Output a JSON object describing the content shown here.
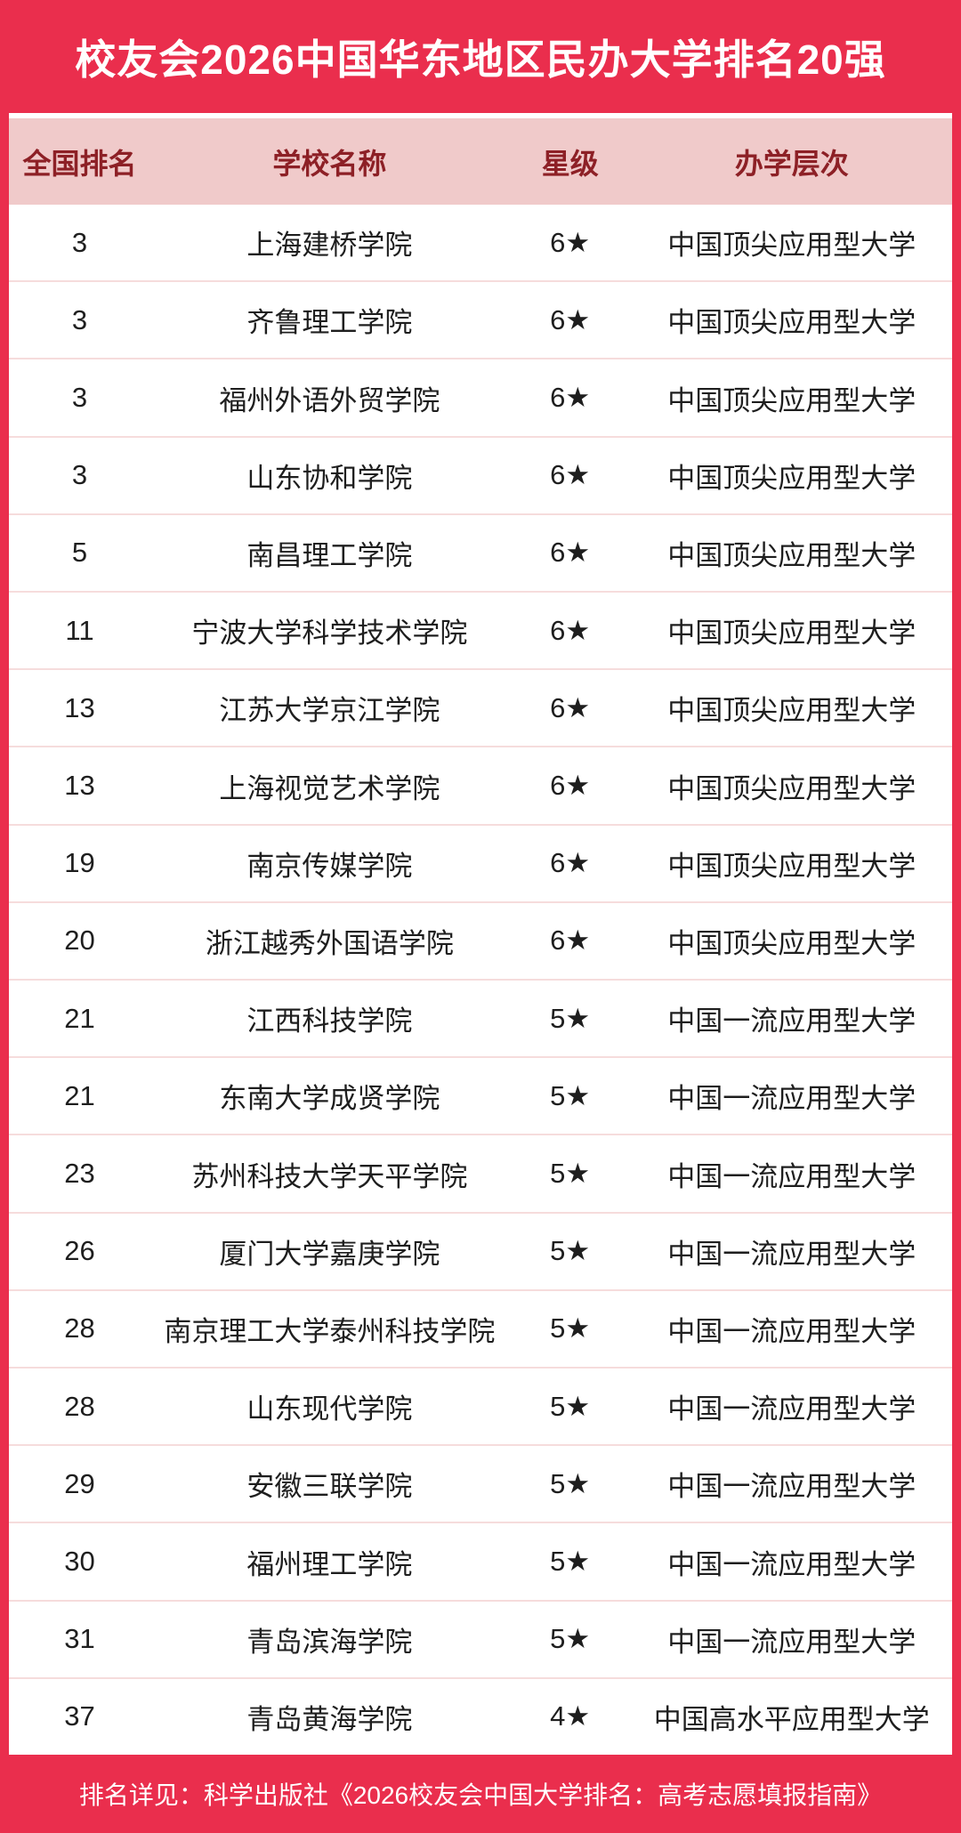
{
  "title": "校友会2026中国华东地区民办大学排名20强",
  "table": {
    "columns": [
      "全国排名",
      "学校名称",
      "星级",
      "办学层次"
    ],
    "rows": [
      {
        "rank": "3",
        "name": "上海建桥学院",
        "star": "6★",
        "level": "中国顶尖应用型大学"
      },
      {
        "rank": "3",
        "name": "齐鲁理工学院",
        "star": "6★",
        "level": "中国顶尖应用型大学"
      },
      {
        "rank": "3",
        "name": "福州外语外贸学院",
        "star": "6★",
        "level": "中国顶尖应用型大学"
      },
      {
        "rank": "3",
        "name": "山东协和学院",
        "star": "6★",
        "level": "中国顶尖应用型大学"
      },
      {
        "rank": "5",
        "name": "南昌理工学院",
        "star": "6★",
        "level": "中国顶尖应用型大学"
      },
      {
        "rank": "11",
        "name": "宁波大学科学技术学院",
        "star": "6★",
        "level": "中国顶尖应用型大学"
      },
      {
        "rank": "13",
        "name": "江苏大学京江学院",
        "star": "6★",
        "level": "中国顶尖应用型大学"
      },
      {
        "rank": "13",
        "name": "上海视觉艺术学院",
        "star": "6★",
        "level": "中国顶尖应用型大学"
      },
      {
        "rank": "19",
        "name": "南京传媒学院",
        "star": "6★",
        "level": "中国顶尖应用型大学"
      },
      {
        "rank": "20",
        "name": "浙江越秀外国语学院",
        "star": "6★",
        "level": "中国顶尖应用型大学"
      },
      {
        "rank": "21",
        "name": "江西科技学院",
        "star": "5★",
        "level": "中国一流应用型大学"
      },
      {
        "rank": "21",
        "name": "东南大学成贤学院",
        "star": "5★",
        "level": "中国一流应用型大学"
      },
      {
        "rank": "23",
        "name": "苏州科技大学天平学院",
        "star": "5★",
        "level": "中国一流应用型大学"
      },
      {
        "rank": "26",
        "name": "厦门大学嘉庚学院",
        "star": "5★",
        "level": "中国一流应用型大学"
      },
      {
        "rank": "28",
        "name": "南京理工大学泰州科技学院",
        "star": "5★",
        "level": "中国一流应用型大学"
      },
      {
        "rank": "28",
        "name": "山东现代学院",
        "star": "5★",
        "level": "中国一流应用型大学"
      },
      {
        "rank": "29",
        "name": "安徽三联学院",
        "star": "5★",
        "level": "中国一流应用型大学"
      },
      {
        "rank": "30",
        "name": "福州理工学院",
        "star": "5★",
        "level": "中国一流应用型大学"
      },
      {
        "rank": "31",
        "name": "青岛滨海学院",
        "star": "5★",
        "level": "中国一流应用型大学"
      },
      {
        "rank": "37",
        "name": "青岛黄海学院",
        "star": "4★",
        "level": "中国高水平应用型大学"
      }
    ]
  },
  "footer": {
    "text": "排名详见：科学出版社《2026校友会中国大学排名：高考志愿填报指南》"
  },
  "colors": {
    "frame_red": "#ea2e4d",
    "header_band_pink": "#f0caca",
    "header_text_maroon": "#8d2026",
    "row_separator_pink": "#f6dcdc",
    "row_text": "#1e1e1e",
    "title_text": "#ffffff"
  }
}
